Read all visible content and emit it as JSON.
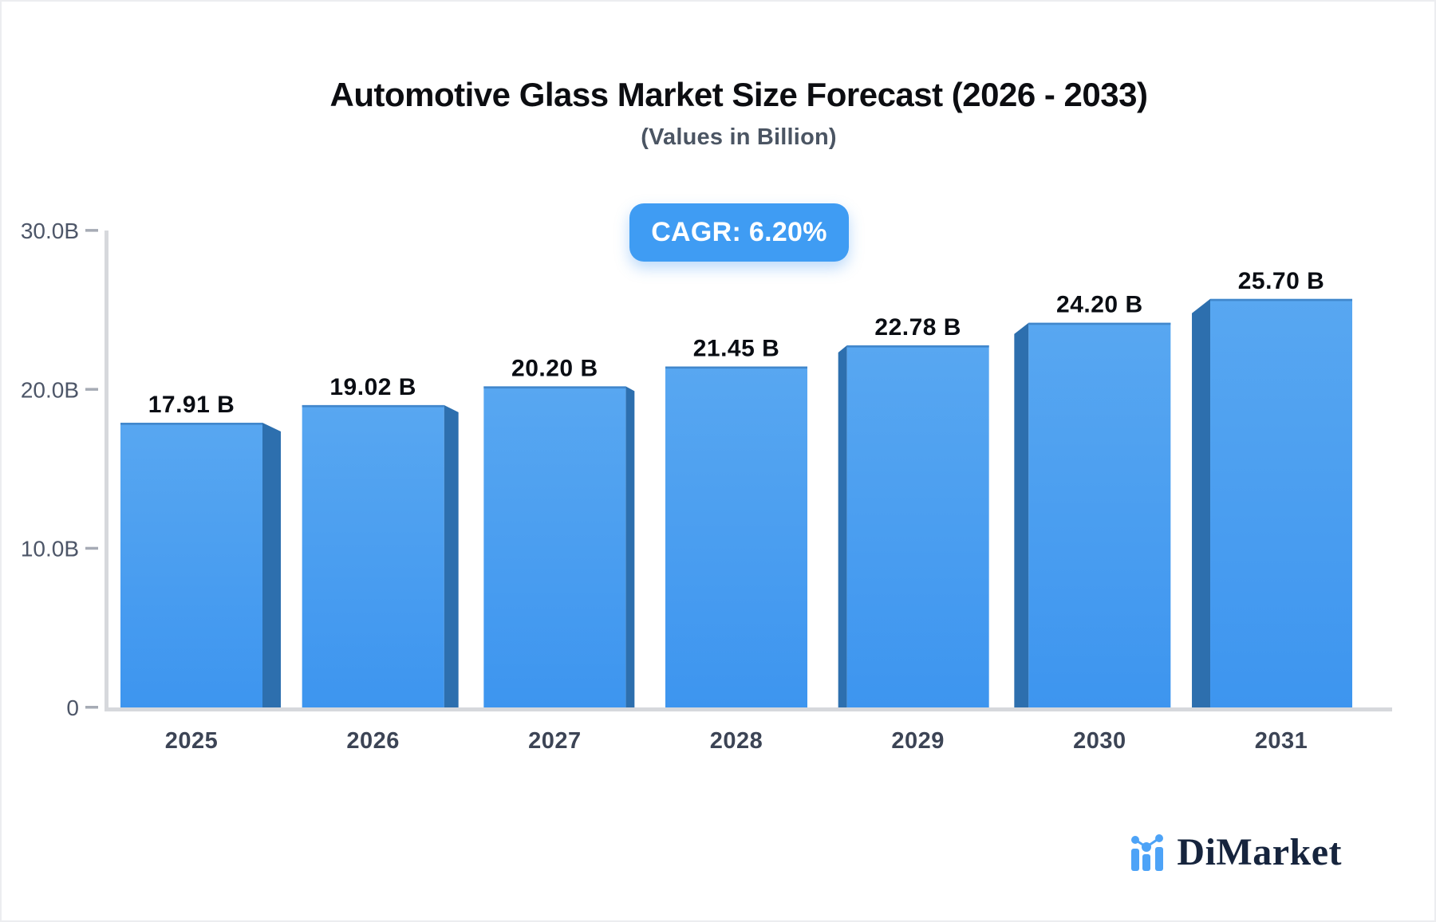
{
  "page": {
    "title": "Automotive Glass Market Size Forecast (2026 - 2033)",
    "subtitle": "(Values in Billion)",
    "cagr_badge": "CAGR: 6.20%",
    "brand": {
      "name": "DiMarket",
      "icon": "mini-bar-chart-logo-icon"
    }
  },
  "colors": {
    "bar_face_top": "#58a7f1",
    "bar_face_bottom": "#3d95ef",
    "bar_side": "#2d6fae",
    "bar_top_edge": "#4187cc",
    "badge_bg": "#3f9cf3",
    "axis_line": "#d6d8dc",
    "tick_dash": "#a6abb5",
    "y_label": "#4d5668",
    "year_label": "#3c4455",
    "value_label": "#0a0d13",
    "logo_text": "#16243d",
    "logo_icon_blue": "#4da3f7"
  },
  "chart_data": {
    "type": "bar",
    "title": "Automotive Glass Market Size Forecast (2026 - 2033)",
    "subtitle": "(Values in Billion)",
    "unit": "Billion",
    "cagr": "6.20%",
    "categories": [
      "2025",
      "2026",
      "2027",
      "2028",
      "2029",
      "2030",
      "2031"
    ],
    "values": [
      17.91,
      19.02,
      20.2,
      21.45,
      22.78,
      24.2,
      25.7
    ],
    "value_labels": [
      "17.91 B",
      "19.02 B",
      "20.20 B",
      "21.45 B",
      "22.78 B",
      "24.20 B",
      "25.70 B"
    ],
    "y_ticks": [
      {
        "value": 0,
        "label": "0"
      },
      {
        "value": 10,
        "label": "10.0B"
      },
      {
        "value": 20,
        "label": "20.0B"
      },
      {
        "value": 30,
        "label": "30.0B"
      }
    ],
    "ylim": [
      0,
      30
    ],
    "grid": false,
    "legend": "none",
    "bar_style": "3d-perspective, side faces angle toward center bar"
  }
}
